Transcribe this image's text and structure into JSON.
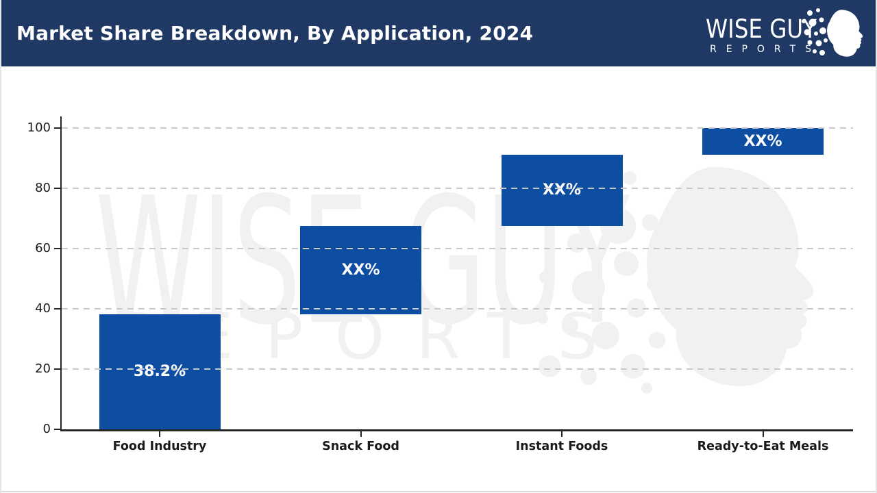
{
  "header": {
    "title": "Market Share Breakdown, By Application, 2024",
    "background": "#203864",
    "logo": {
      "line1": "WISE GUY",
      "line2": "REPORTS"
    }
  },
  "watermark": {
    "line1": "WISE GUY",
    "line2": "REPORTS"
  },
  "chart_data": {
    "type": "bar",
    "subtype": "waterfall-breakdown",
    "title": "Market Share Breakdown, By Application, 2024",
    "categories": [
      "Food Industry",
      "Snack Food",
      "Instant Foods",
      "Ready-to-Eat Meals"
    ],
    "bars": [
      {
        "category": "Food Industry",
        "start": 0,
        "end": 38.2,
        "label": "38.2%"
      },
      {
        "category": "Snack Food",
        "start": 38.2,
        "end": 67.5,
        "label": "XX%"
      },
      {
        "category": "Instant Foods",
        "start": 67.5,
        "end": 91.2,
        "label": "XX%"
      },
      {
        "category": "Ready-to-Eat Meals",
        "start": 91.2,
        "end": 100,
        "label": "XX%"
      }
    ],
    "yticks": [
      0,
      20,
      40,
      60,
      80,
      100
    ],
    "ylim": [
      0,
      103.9
    ],
    "xlabel": "",
    "ylabel": "",
    "grid": "horizontal-dashed-above-bars",
    "legend": "none",
    "bar_color": "#0d4da2",
    "bar_label_color": "#ffffff"
  },
  "colors": {
    "header_background": "#203864",
    "bar_blue": "#0d4da2",
    "axis": "#262626",
    "gridline": "#c9c9c9",
    "watermark_gray": "#f1f1f3",
    "edge_rule_gray": "#d9d9d9"
  }
}
